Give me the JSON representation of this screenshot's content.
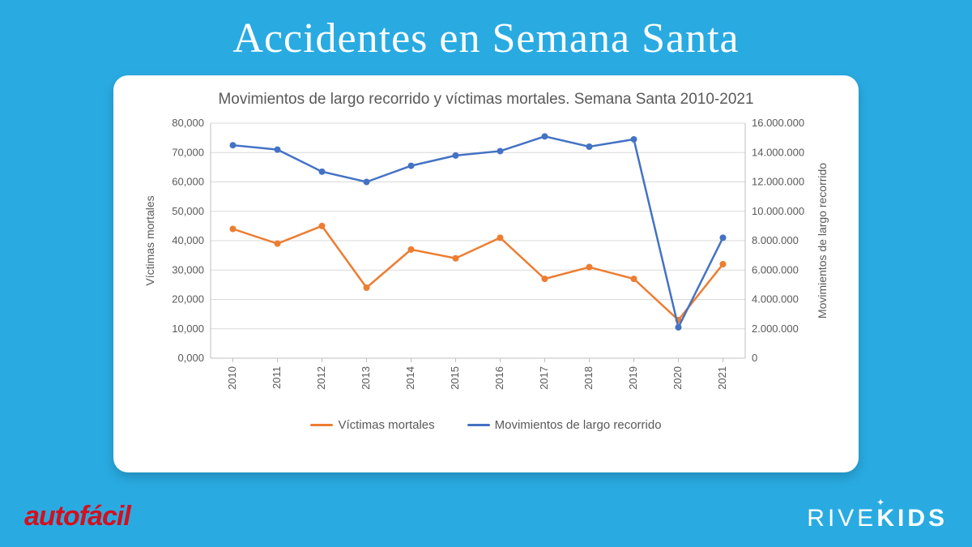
{
  "page": {
    "title": "Accidentes en Semana Santa",
    "background_color": "#29abe2",
    "title_color": "#ffffff",
    "title_fontsize": 52
  },
  "logos": {
    "left_a": "auto",
    "left_b": "fácil",
    "left_color": "#d4101e",
    "right_a": "RIVE",
    "right_b": "KIDS",
    "right_color": "#ffffff"
  },
  "chart": {
    "type": "line",
    "title": "Movimientos de largo recorrido y víctimas mortales. Semana Santa 2010-2021",
    "title_fontsize": 19,
    "title_color": "#595959",
    "card_bg": "#ffffff",
    "card_radius": 18,
    "plot_bg": "#ffffff",
    "grid_color": "#d9d9d9",
    "axis_color": "#bfbfbf",
    "tick_fontsize": 13,
    "tick_color": "#595959",
    "x_categories": [
      "2010",
      "2011",
      "2012",
      "2013",
      "2014",
      "2015",
      "2016",
      "2017",
      "2018",
      "2019",
      "2020",
      "2021"
    ],
    "x_tick_rotation": -90,
    "left_axis": {
      "label": "Víctimas mortales",
      "label_fontsize": 14,
      "min": 0,
      "max": 80,
      "tick_step": 10,
      "tick_labels": [
        "0,000",
        "10,000",
        "20,000",
        "30,000",
        "40,000",
        "50,000",
        "60,000",
        "70,000",
        "80,000"
      ]
    },
    "right_axis": {
      "label": "Movimientos de largo recorrido",
      "label_fontsize": 14,
      "min": 0,
      "max": 16000000,
      "tick_step": 2000000,
      "tick_labels": [
        "0",
        "2.000.000",
        "4.000.000",
        "6.000.000",
        "8.000.000",
        "10.000.000",
        "12.000.000",
        "14.000.000",
        "16.000.000"
      ]
    },
    "series": [
      {
        "name": "Víctimas mortales",
        "axis": "left",
        "color": "#ed7d31",
        "line_width": 2.5,
        "marker": "circle",
        "marker_size": 4,
        "values": [
          44,
          39,
          45,
          24,
          37,
          34,
          41,
          27,
          31,
          27,
          13,
          32
        ]
      },
      {
        "name": "Movimientos de largo recorrido",
        "axis": "right",
        "color": "#4472c4",
        "line_width": 2.5,
        "marker": "circle",
        "marker_size": 4,
        "values": [
          14500000,
          14200000,
          12700000,
          12000000,
          13100000,
          13800000,
          14100000,
          15100000,
          14400000,
          14900000,
          2100000,
          8200000
        ]
      }
    ],
    "legend": {
      "position": "bottom",
      "items": [
        {
          "label": "Víctimas mortales",
          "color": "#ed7d31"
        },
        {
          "label": "Movimientos de largo recorrido",
          "color": "#4472c4"
        }
      ]
    }
  }
}
